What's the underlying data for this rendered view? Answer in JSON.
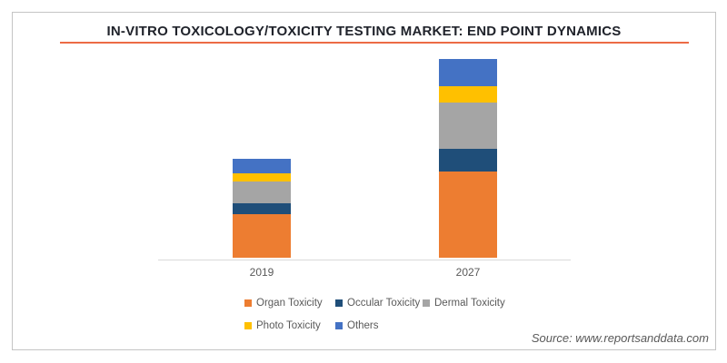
{
  "card": {
    "source_credit": "Source: www.reportsanddata.com"
  },
  "colors": {
    "accent_rule": "#EC6B45",
    "axis_line": "#D9D9D9",
    "muted_text": "#595959",
    "title_text": "#20232B",
    "card_border": "#C4C4C4"
  },
  "chart_data": {
    "type": "bar",
    "stacked": true,
    "title": "IN-VITRO TOXICOLOGY/TOXICITY TESTING MARKET: END POINT DYNAMICS",
    "xlabel": "",
    "ylabel": "",
    "y_axis_visible": false,
    "value_units": "relative height (no value axis shown)",
    "grid": false,
    "legend_position": "bottom",
    "categories": [
      "2019",
      "2027"
    ],
    "series": [
      {
        "name": "Organ Toxicity",
        "color": "#ED7D31",
        "values": [
          48,
          95
        ]
      },
      {
        "name": "Occular Toxicity",
        "color": "#1F4E79",
        "values": [
          12,
          25
        ]
      },
      {
        "name": "Dermal Toxicity",
        "color": "#A5A5A5",
        "values": [
          24,
          51
        ]
      },
      {
        "name": "Photo Toxicity",
        "color": "#FFC000",
        "values": [
          9,
          18
        ]
      },
      {
        "name": "Others",
        "color": "#4472C4",
        "values": [
          16,
          30
        ]
      }
    ],
    "totals": [
      109,
      219
    ]
  }
}
